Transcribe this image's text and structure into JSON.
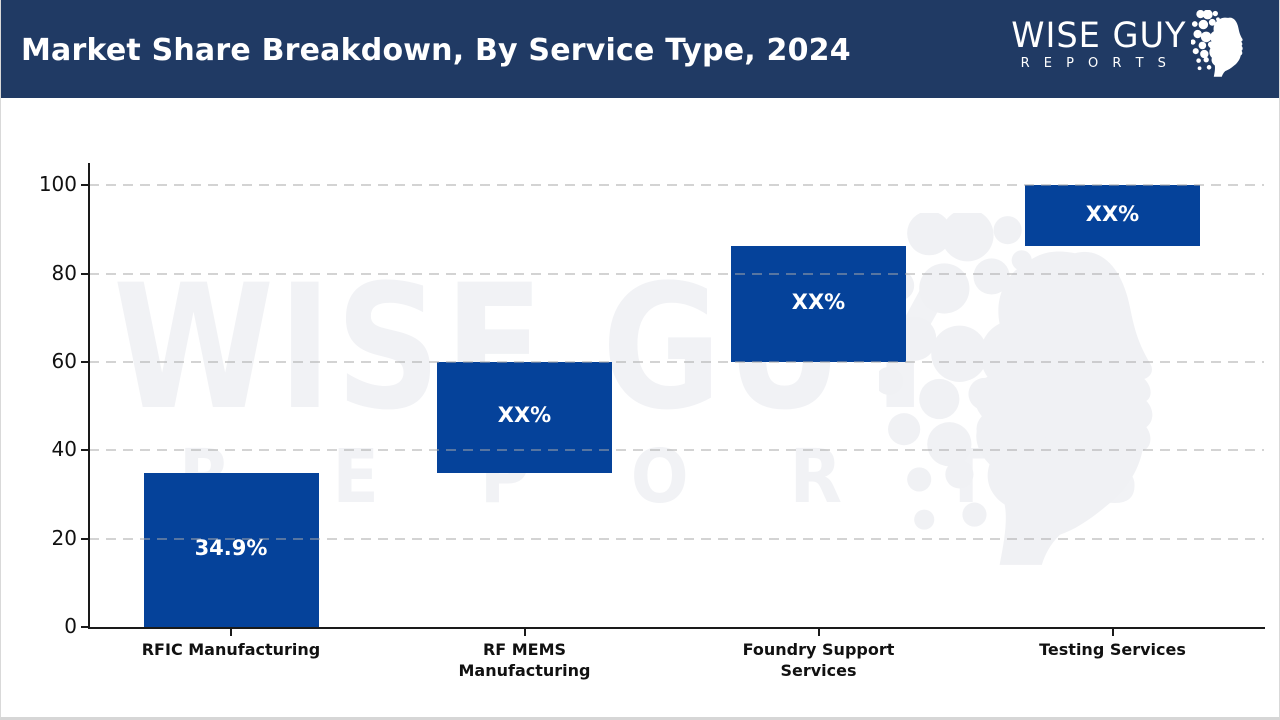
{
  "header": {
    "title": "Market Share Breakdown, By Service Type, 2024",
    "bg_color": "#203a64",
    "logo": {
      "line1": "WISE GUY",
      "line2": "R E P O R T S"
    }
  },
  "watermark": {
    "line1": "WISE GUY",
    "line2": "R E P O R T S"
  },
  "chart_data": {
    "type": "bar",
    "subtype": "waterfall",
    "title": "Market Share Breakdown, By Service Type, 2024",
    "categories": [
      "RFIC Manufacturing",
      "RF MEMS\nManufacturing",
      "Foundry Support\nServices",
      "Testing Services"
    ],
    "segments": [
      {
        "start": 0,
        "end": 34.9,
        "label": "34.9%"
      },
      {
        "start": 34.9,
        "end": 60.0,
        "label": "XX%"
      },
      {
        "start": 60.0,
        "end": 86.3,
        "label": "XX%"
      },
      {
        "start": 86.3,
        "end": 100.0,
        "label": "XX%"
      }
    ],
    "values": [
      34.9,
      25.1,
      26.3,
      13.7
    ],
    "unit": "%",
    "yticks": [
      0,
      20,
      40,
      60,
      80,
      100
    ],
    "ylim": [
      0,
      105
    ],
    "grid": true,
    "legend": false,
    "bar_color": "#05429a",
    "gridline_color": "#d9d9d9",
    "value_label_color": "#ffffff",
    "axis_color": "#1a1a1a"
  }
}
